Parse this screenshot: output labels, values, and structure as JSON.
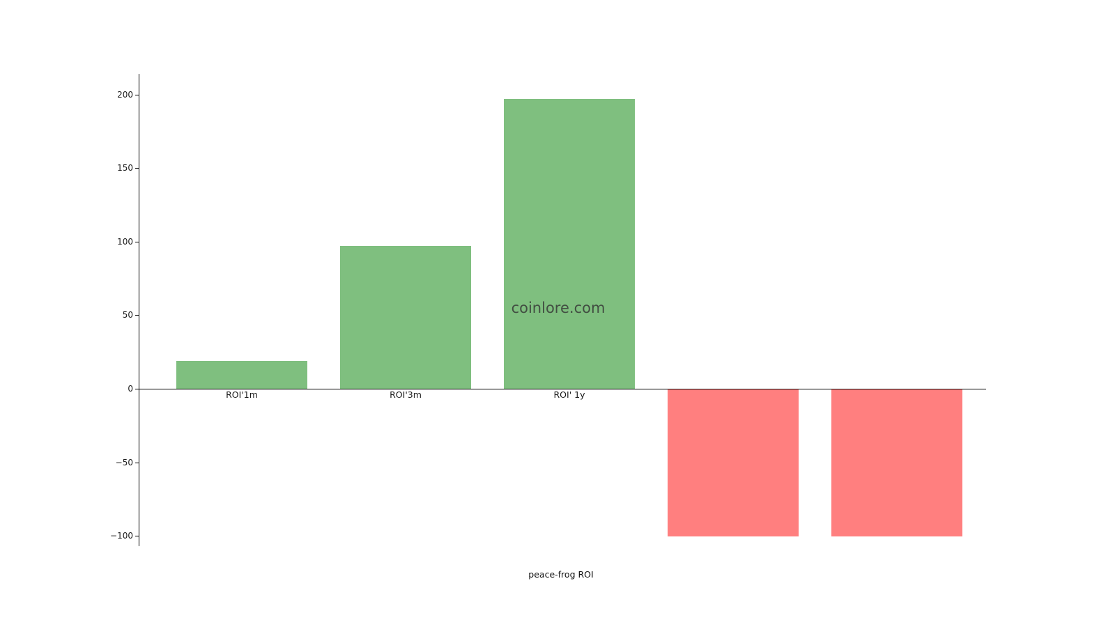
{
  "page": {
    "background": "#ffffff"
  },
  "watermark": {
    "text": "coinlore.com",
    "color": "#333333"
  },
  "chart_data": {
    "type": "bar",
    "title": "",
    "xlabel": "peace-frog ROI",
    "ylabel": "",
    "categories": [
      "ROI'1m",
      "ROI'3m",
      "ROI' 1y",
      "",
      ""
    ],
    "values": [
      19,
      97,
      197,
      -100,
      -100
    ],
    "series": [
      {
        "name": "peace-frog ROI",
        "values": [
          19,
          97,
          197,
          -100,
          -100
        ]
      }
    ],
    "bar_colors": [
      "#7fbf7f",
      "#7fbf7f",
      "#7fbf7f",
      "#ff7f7f",
      "#ff7f7f"
    ],
    "positive_color": "#7fbf7f",
    "negative_color": "#ff7f7f",
    "axis_color": "#000000",
    "tick_label_color": "#1a1a1a",
    "yticks": [
      200,
      150,
      100,
      50,
      0,
      -50,
      -100
    ],
    "ytick_labels": [
      "200",
      "150",
      "100",
      "50",
      "0",
      "−50",
      "−100"
    ],
    "ylim": [
      -107,
      214
    ],
    "baseline": 0,
    "grid": false,
    "legend": "none"
  }
}
